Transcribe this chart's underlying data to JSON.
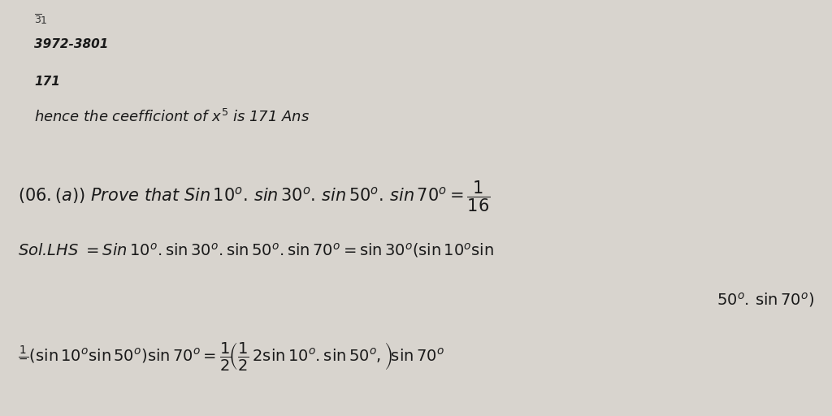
{
  "background_color": "#d8d4ce",
  "title_top_left": "3972-3801",
  "title_top_left2": "171",
  "line1": "the ceefficiont of $x^5$ is 171 Ans",
  "line1_prefix": "hence",
  "question_label": "(06.(a))",
  "question_text": "Prove that $\\mathrm{Sin}\\,10^o.\\,\\sin 30^o.\\,\\sin 50^o.\\,\\sin 70^o = \\dfrac{1}{16}$",
  "sol_line1_prefix": "Sol.LHS",
  "sol_line1": "$= \\mathrm{Sin}\\,10^o.\\sin 30^o.\\sin 50^o.\\sin 70^o = \\sin 30^o(\\sin 10^o\\sin$",
  "sol_line1_cont": "$50^o.\\sin 70^o)$",
  "sol_line2_prefix": "$\\frac{1}{-}(\\sin 10^o\\sin 50^o)\\sin 70^o$",
  "sol_line2": "$= \\dfrac{1}{2}\\!\\left(\\dfrac{1}{2}\\,2\\sin 10^o.\\sin 50^o,\\right)\\!\\sin 70^o$",
  "figsize": [
    10.24,
    5.12
  ],
  "dpi": 100
}
